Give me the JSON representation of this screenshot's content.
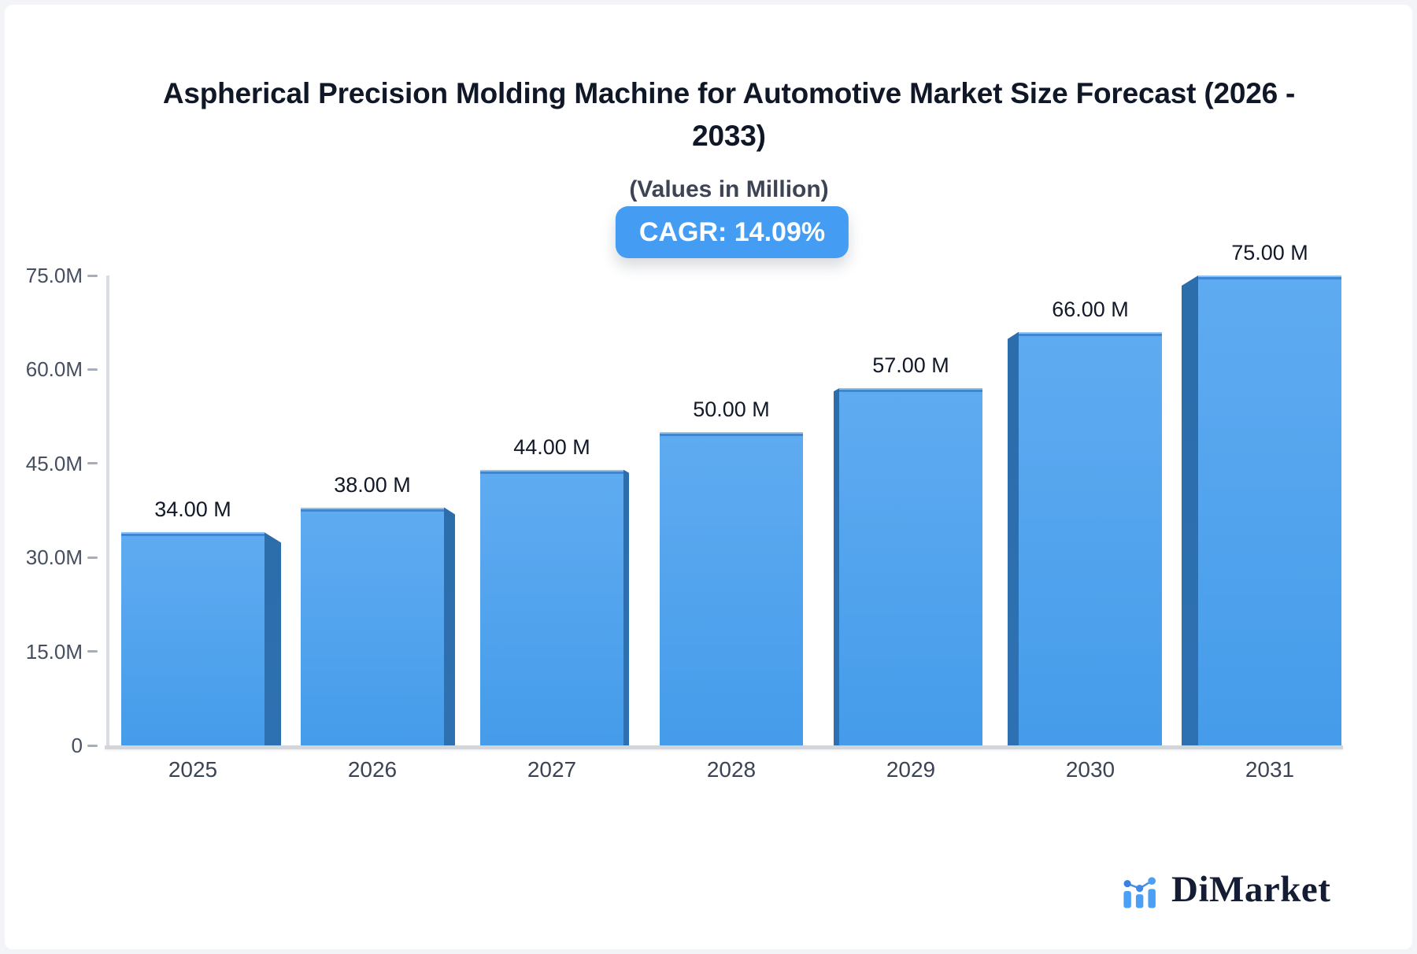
{
  "header": {
    "title": "Aspherical Precision Molding Machine for Automotive Market Size Forecast (2026 - 2033)",
    "title_lines": [
      "Aspherical Precision Molding Machine for Automotive Market Size Forecast (2026 -",
      "2033)"
    ],
    "subtitle": "(Values in Million)",
    "cagr_badge": "CAGR: 14.09%",
    "badge_color": "#459df3"
  },
  "branding": {
    "logo_text": "DiMarket",
    "logo_icon": "bar-chart-logo-icon",
    "logo_bar_color": "#4aa0f4",
    "logo_dot_color": "#3b82e0",
    "logo_text_color": "#141d34"
  },
  "chart_data": {
    "type": "bar",
    "title": "Aspherical Precision Molding Machine for Automotive Market Size Forecast (2026 - 2033)",
    "subtitle": "(Values in Million)",
    "cagr_percent": "14.09%",
    "categories": [
      "2025",
      "2026",
      "2027",
      "2028",
      "2029",
      "2030",
      "2031"
    ],
    "values": [
      34,
      38,
      44,
      50,
      57,
      66,
      75
    ],
    "value_labels": [
      "34.00 M",
      "38.00 M",
      "44.00 M",
      "50.00 M",
      "57.00 M",
      "66.00 M",
      "75.00 M"
    ],
    "ylim": [
      0,
      75
    ],
    "yticks": {
      "values": [
        0,
        15,
        30,
        45,
        60,
        75
      ],
      "labels": [
        "0",
        "15.0M",
        "30.0M",
        "45.0M",
        "60.0M",
        "75.0M"
      ]
    },
    "grid": false,
    "legend": false,
    "style_3d": "perspective toward center: left bars extrude right, right bars extrude left, center bar flat",
    "colors": {
      "bar_face_top": "#5fabf1",
      "bar_face_bottom": "#459cea",
      "bar_top_highlight": "#8fc3f3",
      "bar_top_accent": "#3f87d2",
      "bar_side": "#2e71b2",
      "bar_side_dark": "#2c6dab",
      "axis_line": "#d9dde2",
      "baseline": "#d2d6db",
      "tick": "#a6adb8",
      "tick_label": "#454f60",
      "category_label": "#3b4454",
      "value_label": "#111827"
    }
  }
}
